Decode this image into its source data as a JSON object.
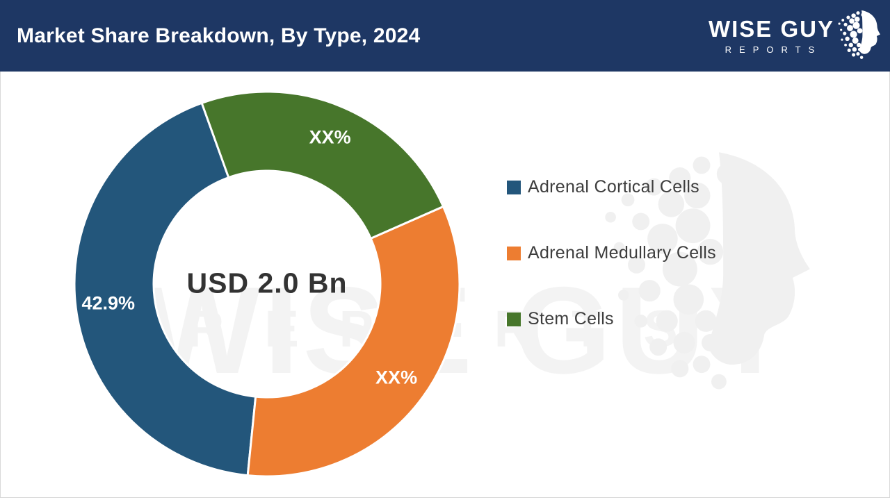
{
  "header": {
    "title": "Market Share Breakdown, By Type, 2024",
    "logo": {
      "line1": "WISE GUY",
      "line2": "REPORTS"
    }
  },
  "watermark": {
    "line1": "WISE GUY",
    "line2": "REPORTS"
  },
  "chart_data": {
    "type": "donut",
    "title": "Market Share Breakdown, By Type, 2024",
    "center_label": "USD 2.0 Bn",
    "start_angle_deg": -19.8,
    "legend_position": "right",
    "slices": [
      {
        "name": "Adrenal Cortical Cells",
        "color": "#23567b",
        "pct": 42.9,
        "label": "42.9%"
      },
      {
        "name": "Adrenal Medullary Cells",
        "color": "#ed7d31",
        "pct": 33.2,
        "label": "XX%"
      },
      {
        "name": "Stem Cells",
        "color": "#47762b",
        "pct": 23.9,
        "label": "XX%"
      }
    ],
    "note": "Medullary and Stem Cells shares are masked as XX% in the image; pct values estimated from arc angles"
  }
}
